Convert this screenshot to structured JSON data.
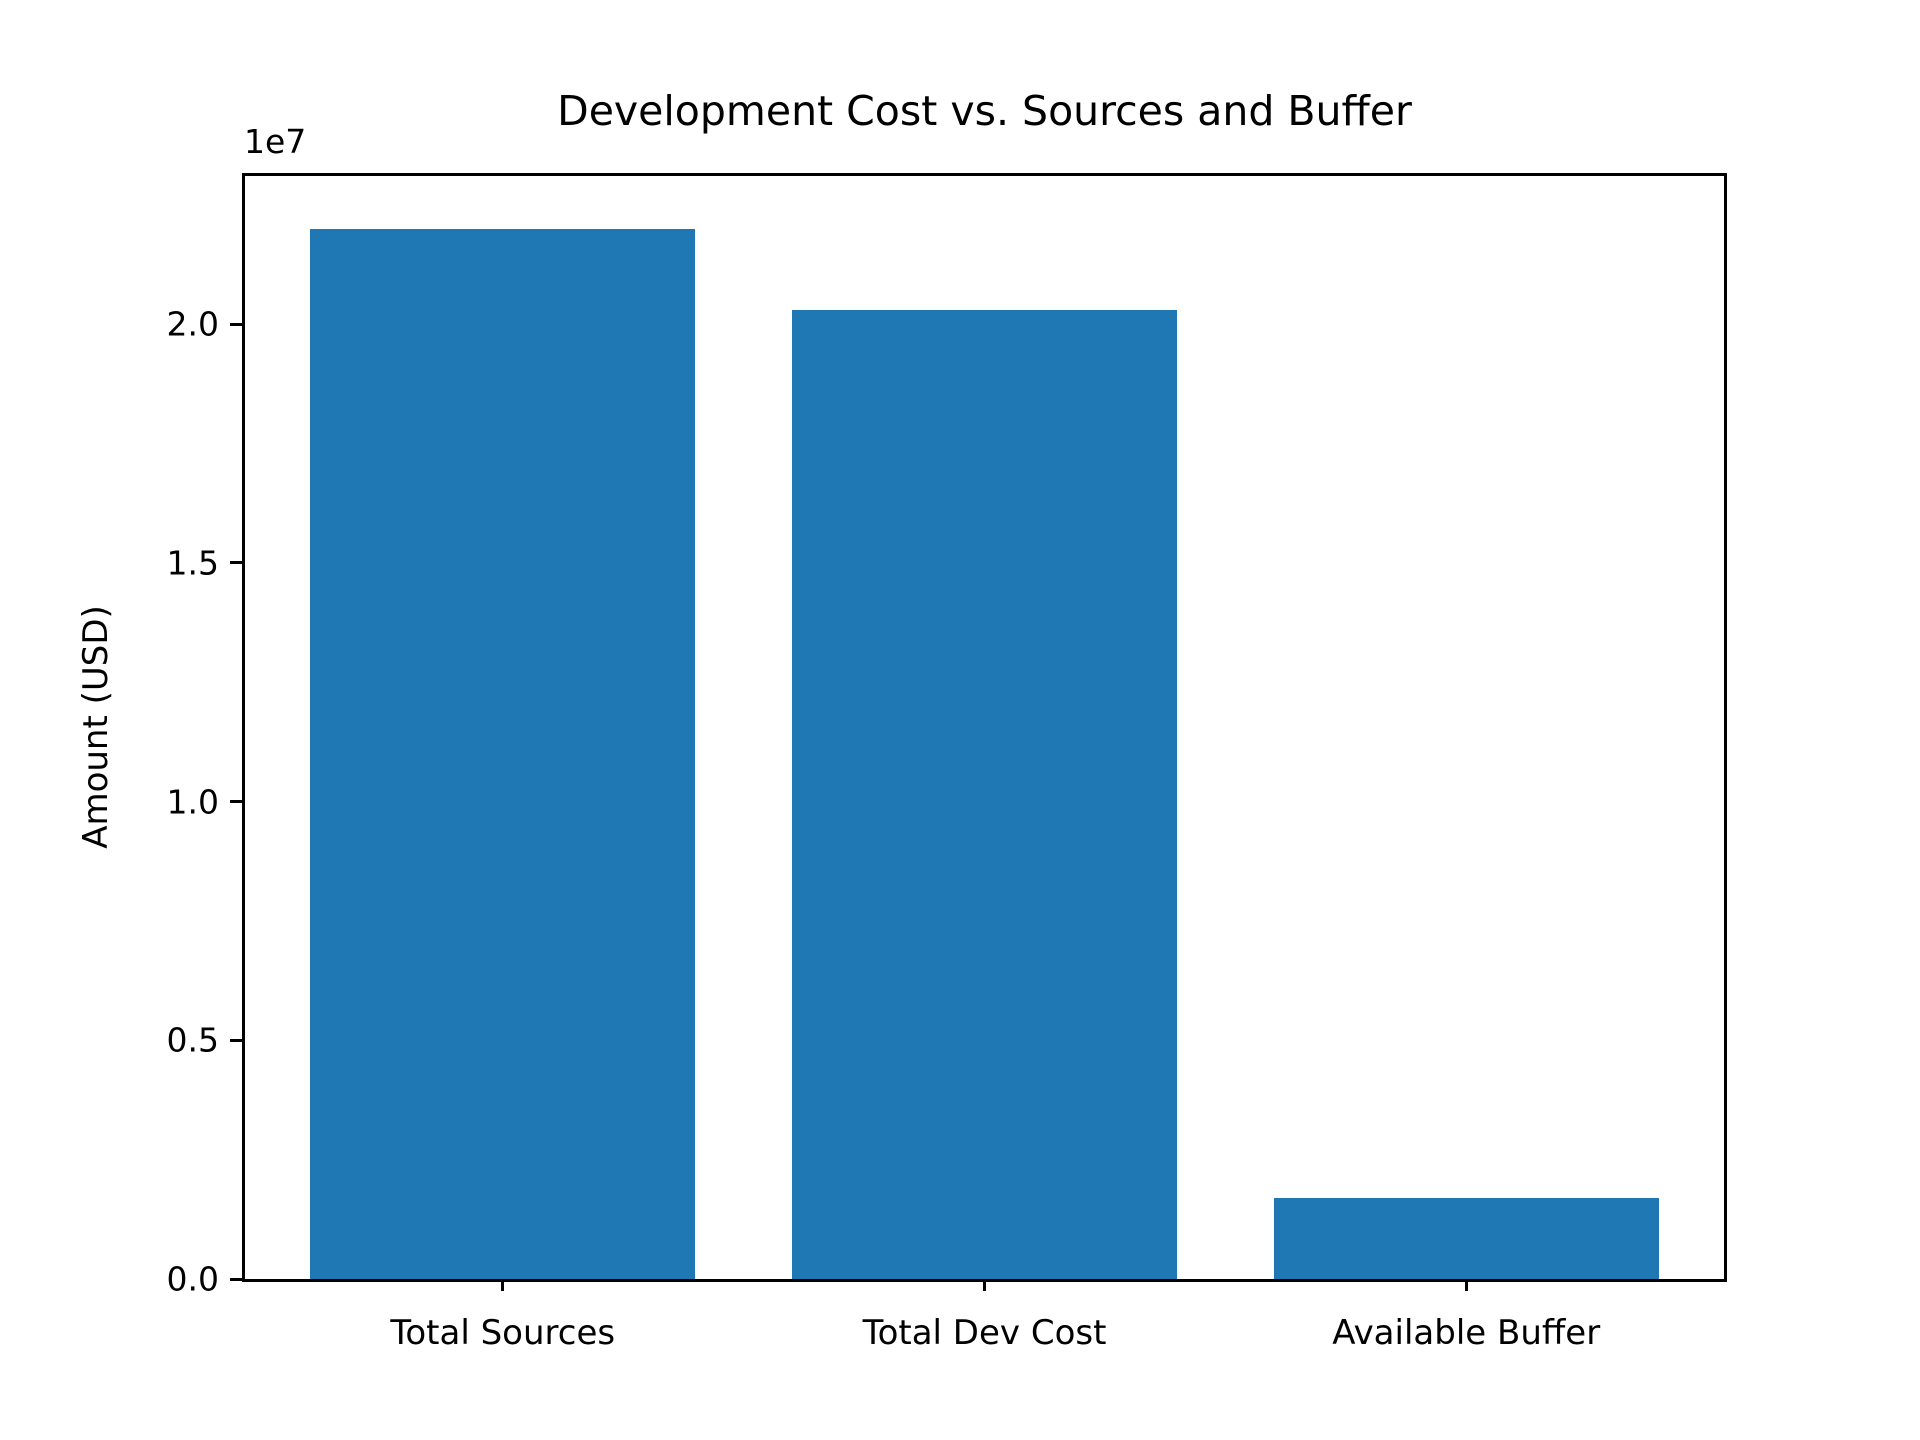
{
  "chart_data": {
    "type": "bar",
    "title": "Development Cost vs. Sources and Buffer",
    "xlabel": "",
    "ylabel": "Amount (USD)",
    "y_offset_label": "1e7",
    "categories": [
      "Total Sources",
      "Total Dev Cost",
      "Available Buffer"
    ],
    "values": [
      22000000,
      20300000,
      1700000
    ],
    "bar_color": "#1f77b4",
    "ylim": [
      0,
      23100000
    ],
    "yticks": [
      {
        "value": 0,
        "label": "0.0"
      },
      {
        "value": 5000000,
        "label": "0.5"
      },
      {
        "value": 10000000,
        "label": "1.0"
      },
      {
        "value": 15000000,
        "label": "1.5"
      },
      {
        "value": 20000000,
        "label": "2.0"
      }
    ],
    "grid": false,
    "legend": null
  }
}
